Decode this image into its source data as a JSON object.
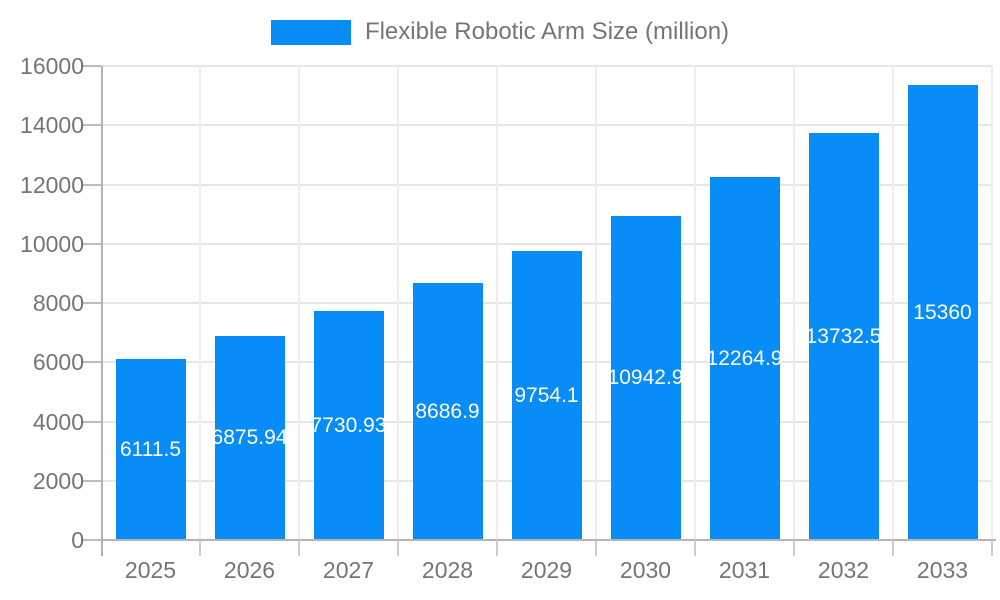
{
  "chart": {
    "legend_label": "Flexible Robotic Arm Size (million)",
    "colors": {
      "bar": "#088cf8",
      "axis_text": "#757575",
      "bar_label_text": "#ffffff",
      "grid_horizontal": "#e6e6e6",
      "grid_vertical": "#ededed",
      "axis_line": "#b3b3b3"
    }
  },
  "chart_data": {
    "type": "bar",
    "title": "Flexible Robotic Arm Size (million)",
    "legend": [
      "Flexible Robotic Arm Size (million)"
    ],
    "legend_position": "top",
    "categories": [
      "2025",
      "2026",
      "2027",
      "2028",
      "2029",
      "2030",
      "2031",
      "2032",
      "2033"
    ],
    "values": [
      6111.5,
      6875.94,
      7730.93,
      8686.9,
      9754.1,
      10942.9,
      12264.9,
      13732.5,
      15360
    ],
    "bar_labels": [
      "6111.5",
      "6875.94",
      "7730.93",
      "8686.9",
      "9754.1",
      "10942.9",
      "12264.9",
      "13732.5",
      "15360"
    ],
    "xlabel": "",
    "ylabel": "",
    "ylim": [
      0,
      16000
    ],
    "yticks": [
      0,
      2000,
      4000,
      6000,
      8000,
      10000,
      12000,
      14000,
      16000
    ],
    "grid": true
  }
}
